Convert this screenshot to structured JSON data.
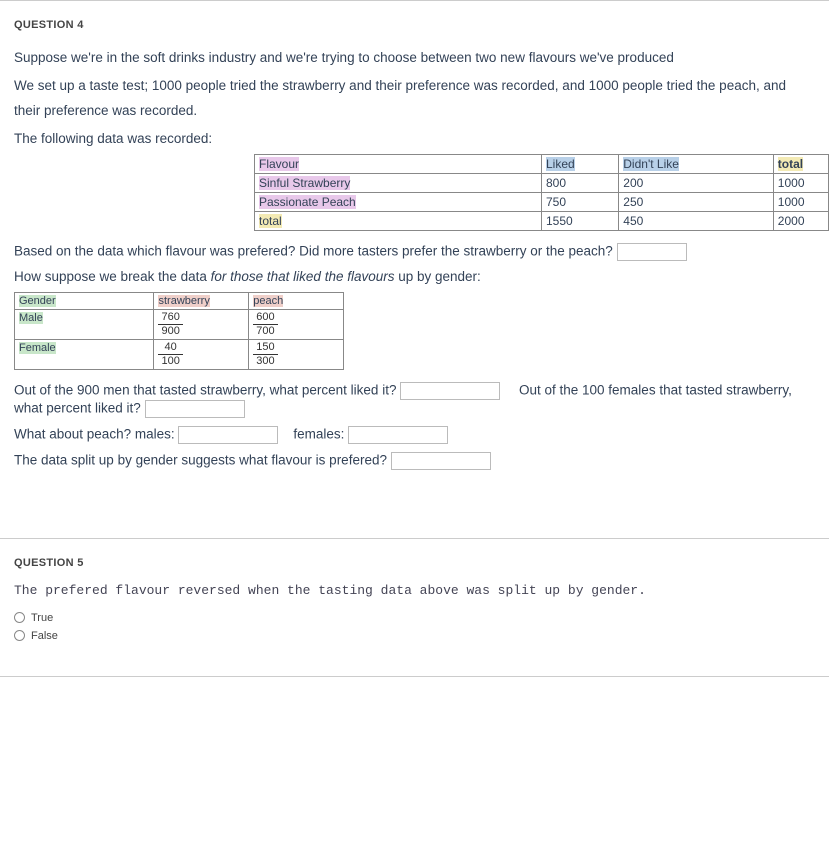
{
  "q4": {
    "header": "QUESTION 4",
    "p1": "Suppose we're in the soft drinks industry and we're trying to choose between two new flavours we've produced",
    "p2": "We set up a taste test; 1000 people tried the strawberry and their preference was recorded, and 1000 people tried the peach, and their preference was recorded.",
    "p3": "The following data was recorded:",
    "table1": {
      "head": {
        "flavour": "Flavour",
        "liked": "Liked",
        "didnt": "Didn't Like",
        "total": "total"
      },
      "rows": [
        {
          "flavour": "Sinful Strawberry",
          "liked": "800",
          "didnt": "200",
          "total": "1000"
        },
        {
          "flavour": "Passionate Peach",
          "liked": "750",
          "didnt": "250",
          "total": "1000"
        }
      ],
      "totalrow": {
        "label": "total",
        "liked": "1550",
        "didnt": "450",
        "total": "2000"
      }
    },
    "q_pref": "Based on the data which flavour was prefered?  Did more tasters prefer the strawberry or the peach?",
    "p_break_a": "How suppose we break the data ",
    "p_break_i": "for those that liked the flavours",
    "p_break_b": " up by gender:",
    "table2": {
      "head": {
        "gender": "Gender",
        "straw": "strawberry",
        "peach": "peach"
      },
      "rows": [
        {
          "gender": "Male",
          "s_num": "760",
          "s_den": "900",
          "p_num": "600",
          "p_den": "700"
        },
        {
          "gender": "Female",
          "s_num": "40",
          "s_den": "100",
          "p_num": "150",
          "p_den": "300"
        }
      ]
    },
    "q_men_a": "Out of the 900 men that tasted strawberry, what percent liked it?",
    "q_fem_a": "Out of the 100 females that tasted strawberry, what percent liked it?",
    "q_peach": "What about peach?  males:",
    "q_peach_f": "females:",
    "q_split": "The data split up by gender suggests what flavour is prefered?"
  },
  "q5": {
    "header": "QUESTION 5",
    "stmt": "The prefered flavour reversed when the tasting data above was split up by gender.",
    "opt_true": "True",
    "opt_false": "False"
  },
  "colors": {
    "violet": "#e8c8ea",
    "blue": "#b8d0e8",
    "yellow": "#f3eab4",
    "green": "#c8e6c9",
    "pink": "#efcfc9"
  }
}
